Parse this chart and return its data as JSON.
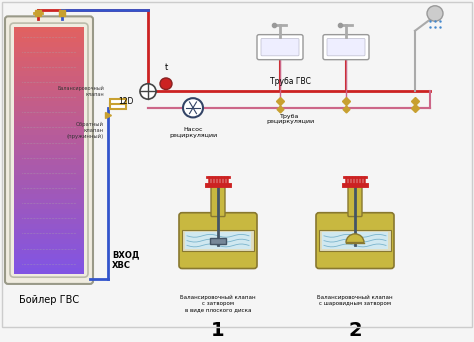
{
  "bg_color": "#f5f5f5",
  "hot_color": "#cc2222",
  "cold_color": "#3355cc",
  "recirc_color": "#cc6688",
  "gold": "#c8a030",
  "teal": "#007070",
  "boiler_label": "Бойлер ГВС",
  "vhod_label": "ВХОД\nХВС",
  "truba_gvs": "Труба ГВС",
  "truba_recirc": "Труба\nрециркуляции",
  "nasos_label": "Насос\nрециркуляции",
  "temp_label": "t",
  "label_12d": "12D",
  "valve1_lines": [
    "Балансировочный клапан",
    "с затвором",
    "в виде плоского диска"
  ],
  "valve2_lines": [
    "Балансировочный клапан",
    "с шаровидным затвором"
  ],
  "num1": "1",
  "num2": "2",
  "obratniy": "Обратный\nклапан\n(пружинный)",
  "balans": "Балансировочный\nклапан"
}
